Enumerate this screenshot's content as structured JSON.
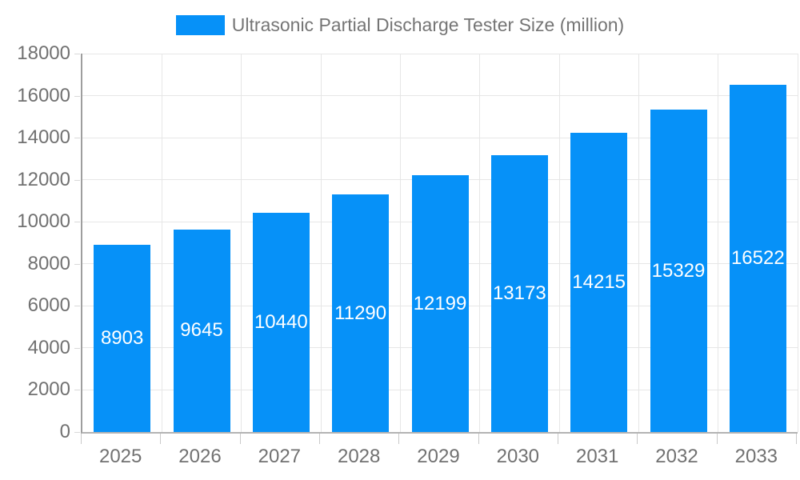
{
  "legend": {
    "label": "Ultrasonic Partial Discharge Tester Size (million)"
  },
  "chart_data": {
    "type": "bar",
    "title": "Ultrasonic Partial Discharge Tester Size (million)",
    "categories": [
      "2025",
      "2026",
      "2027",
      "2028",
      "2029",
      "2030",
      "2031",
      "2032",
      "2033"
    ],
    "series": [
      {
        "name": "Ultrasonic Partial Discharge Tester Size (million)",
        "values": [
          8903,
          9645,
          10440,
          11290,
          12199,
          13173,
          14215,
          15329,
          16522
        ]
      }
    ],
    "xlabel": "",
    "ylabel": "",
    "ylim": [
      0,
      18000
    ],
    "yticks": [
      0,
      2000,
      4000,
      6000,
      8000,
      10000,
      12000,
      14000,
      16000,
      18000
    ],
    "grid": true,
    "legend_position": "top",
    "bar_labels_visible": true,
    "colors": {
      "bar": "#0691f8",
      "bar_label_text": "#ffffff",
      "gridline": "#e6e6e6",
      "y_axis_line": "#9e9e9e",
      "x_axis_line": "#b3b3b3",
      "axis_text": "#717171",
      "legend_text": "#757575",
      "background": "#ffffff"
    }
  }
}
